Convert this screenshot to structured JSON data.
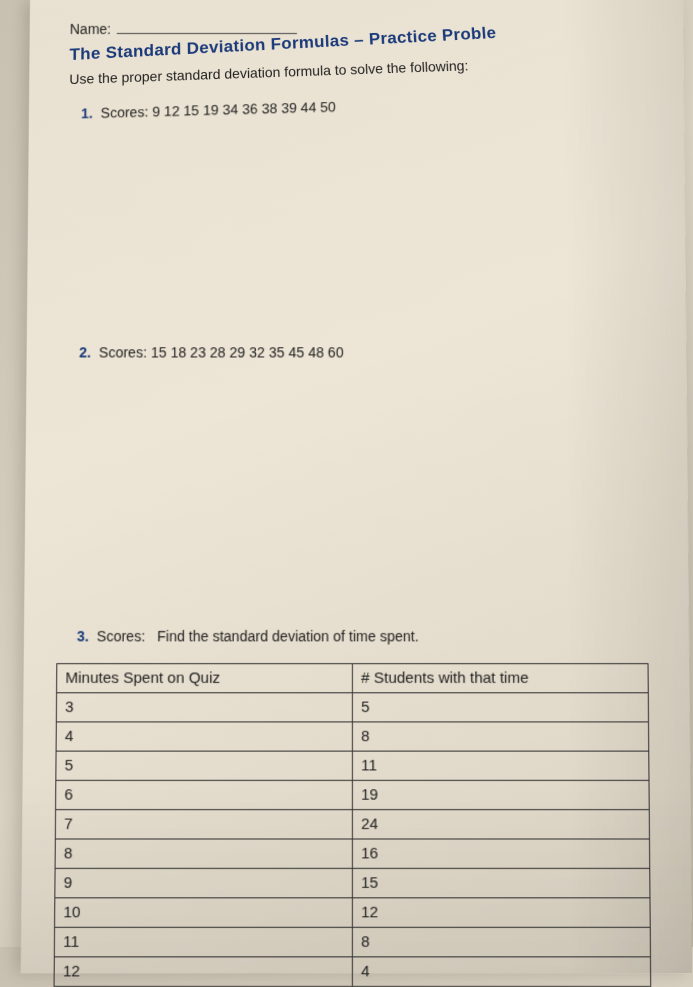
{
  "header": {
    "name_label": "Name:",
    "title": "The Standard Deviation Formulas – Practice Proble",
    "instruction": "Use the proper standard deviation formula to solve the following:"
  },
  "problems": {
    "p1": {
      "num": "1.",
      "label": "Scores:",
      "values": "9  12  15  19  34  36  38  39  44  50"
    },
    "p2": {
      "num": "2.",
      "label": "Scores:",
      "values": "15  18  23  28  29  32  35  45  48  60"
    },
    "p3": {
      "num": "3.",
      "label": "Scores:",
      "description": "Find the standard deviation of time spent."
    }
  },
  "table": {
    "col1_header": "Minutes Spent on Quiz",
    "col2_header": "# Students with that time",
    "rows": [
      {
        "minutes": "3",
        "count": "5"
      },
      {
        "minutes": "4",
        "count": "8"
      },
      {
        "minutes": "5",
        "count": "11"
      },
      {
        "minutes": "6",
        "count": "19"
      },
      {
        "minutes": "7",
        "count": "24"
      },
      {
        "minutes": "8",
        "count": "16"
      },
      {
        "minutes": "9",
        "count": "15"
      },
      {
        "minutes": "10",
        "count": "12"
      },
      {
        "minutes": "11",
        "count": "8"
      },
      {
        "minutes": "12",
        "count": "4"
      }
    ]
  },
  "colors": {
    "title_color": "#1a3a7a",
    "text_color": "#222222",
    "border_color": "#333333",
    "paper_bg": "#e8e0d0"
  }
}
